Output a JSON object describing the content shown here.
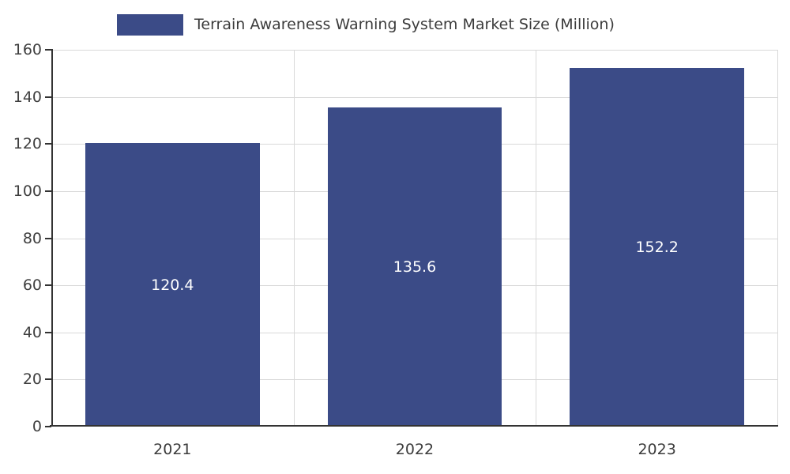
{
  "legend": {
    "label": "Terrain Awareness Warning System Market Size (Million)"
  },
  "chart_data": {
    "type": "bar",
    "categories": [
      "2021",
      "2022",
      "2023"
    ],
    "values": [
      120.4,
      135.6,
      152.2
    ],
    "value_labels": [
      "120.4",
      "135.6",
      "152.2"
    ],
    "title": "Terrain Awareness Warning System Market Size (Million)",
    "xlabel": "",
    "ylabel": "",
    "ylim": [
      0,
      160
    ],
    "ytick_step": 20,
    "ytick_labels": [
      "0",
      "20",
      "40",
      "60",
      "80",
      "100",
      "120",
      "140",
      "160"
    ],
    "grid": true,
    "legend_position": "top",
    "bar_color": "#3b4b87",
    "value_label_color": "#ffffff",
    "gridline_color": "#d9d9d9",
    "axis_color": "#333333"
  }
}
